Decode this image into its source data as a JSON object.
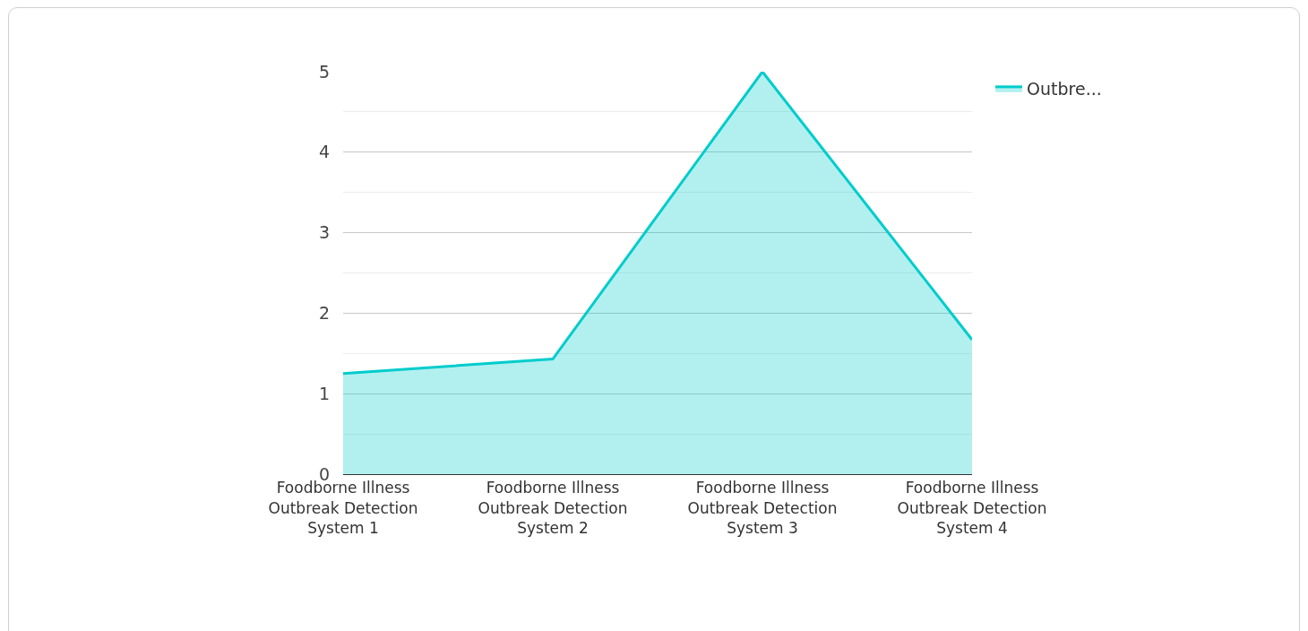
{
  "chart_data": {
    "type": "area",
    "categories": [
      "Foodborne Illness Outbreak Detection System 1",
      "Foodborne Illness Outbreak Detection System 2",
      "Foodborne Illness Outbreak Detection System 3",
      "Foodborne Illness Outbreak Detection System 4"
    ],
    "series": [
      {
        "name": "Outbre...",
        "color": "#00cccc",
        "values": [
          1.25,
          1.43,
          5,
          1.67
        ]
      }
    ],
    "ylim": [
      0,
      5
    ],
    "yticks": [
      0,
      1,
      2,
      3,
      4,
      5
    ],
    "grid": "y",
    "legend": "top right",
    "marker": "none",
    "line_style": "solid"
  }
}
